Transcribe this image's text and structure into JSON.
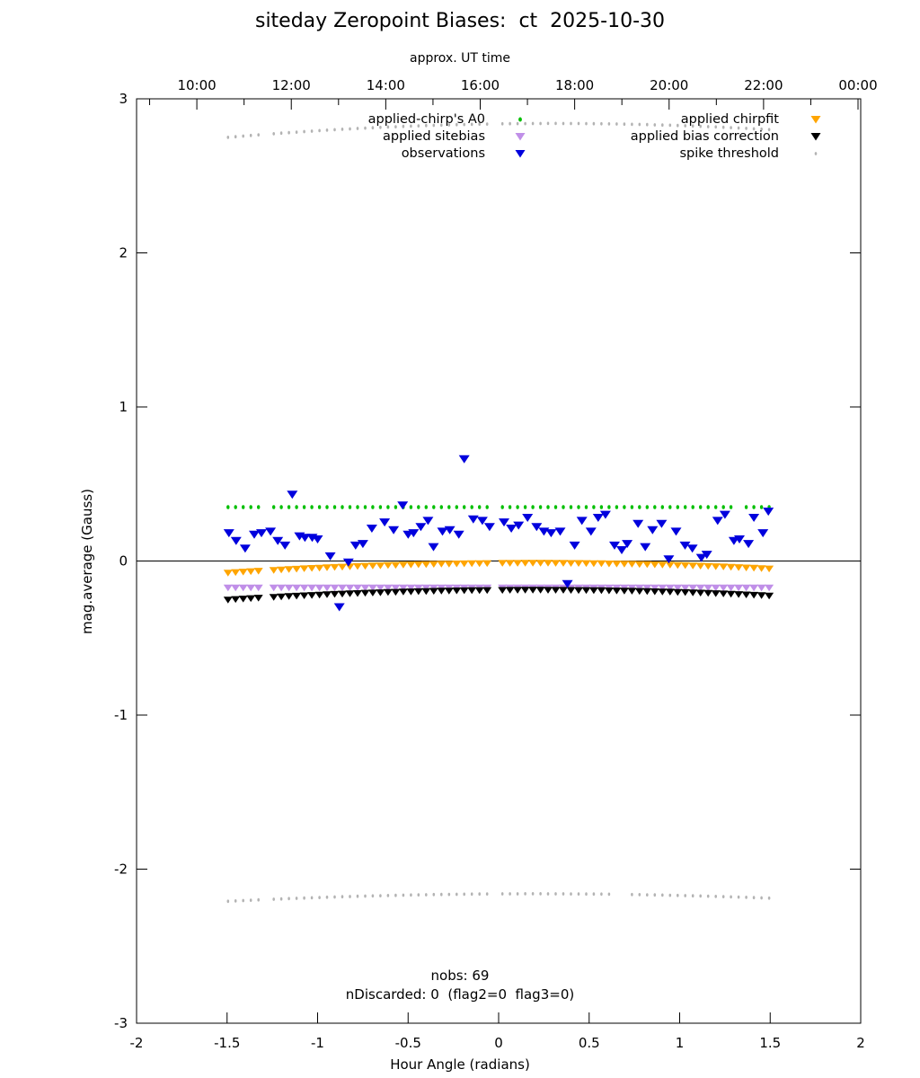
{
  "title": "siteday Zeropoint Biases:  ct  2025-10-30",
  "annotations": {
    "nobs": "nobs: 69",
    "ndiscarded": "nDiscarded: 0  (flag2=0  flag3=0)"
  },
  "chart_data": {
    "type": "scatter",
    "title": "siteday Zeropoint Biases:  ct  2025-10-30",
    "xlabel": "Hour Angle (radians)",
    "ylabel": "mag.average (Gauss)",
    "x2label": "approx. UT time",
    "xlim": [
      -2,
      2
    ],
    "ylim": [
      -3,
      3
    ],
    "grid": false,
    "x_ticks": [
      -2,
      -1.5,
      -1,
      -0.5,
      0,
      0.5,
      1,
      1.5,
      2
    ],
    "x_tick_labels": [
      "-2",
      "-1.5",
      "-1",
      "-0.5",
      "0",
      "0.5",
      "1",
      "1.5",
      "2"
    ],
    "y_ticks": [
      -3,
      -2,
      -1,
      0,
      1,
      2,
      3
    ],
    "y_tick_labels": [
      "-3",
      "-2",
      "-1",
      "0",
      "1",
      "2",
      "3"
    ],
    "x2_axis": {
      "ref_hour": 10,
      "ref_rad": -1.667,
      "rad_per_hour": 0.26087,
      "minor_hours": [
        9,
        10,
        11,
        12,
        13,
        14,
        15,
        16,
        17,
        18,
        19,
        20,
        21,
        22,
        23,
        24
      ],
      "labeled_hours": [
        [
          10,
          "10:00"
        ],
        [
          12,
          "12:00"
        ],
        [
          14,
          "14:00"
        ],
        [
          16,
          "16:00"
        ],
        [
          18,
          "18:00"
        ],
        [
          20,
          "20:00"
        ],
        [
          22,
          "22:00"
        ],
        [
          24,
          "00:00"
        ]
      ]
    },
    "legend_left": [
      {
        "label": "applied-chirp's A0",
        "series": "applied_chirps_A0",
        "marker": "dot",
        "color": "#00bf00"
      },
      {
        "label": "applied sitebias",
        "series": "applied_sitebias",
        "marker": "triangle-down",
        "color": "#c08fe8"
      },
      {
        "label": "observations",
        "series": "observations",
        "marker": "triangle-down",
        "color": "#0000dd"
      }
    ],
    "legend_right": [
      {
        "label": "applied chirpfit",
        "series": "applied_chirpfit",
        "marker": "triangle-down",
        "color": "#ffa500"
      },
      {
        "label": "applied bias correction",
        "series": "applied_bias_correction",
        "marker": "triangle-down",
        "color": "#000000"
      },
      {
        "label": "spike threshold",
        "series": "spike_threshold",
        "marker": "dot",
        "color": "#b3b3b3"
      }
    ],
    "row_sampling": {
      "x_start": -1.495,
      "x_end": 1.511,
      "x_step": 0.0421,
      "gaps_common": [
        [
          -1.305,
          -1.252
        ],
        [
          -0.055,
          0.018
        ]
      ],
      "gaps_green_extra": [
        [
          1.292,
          1.355
        ]
      ],
      "gaps_gray_lower_extra": [
        [
          0.63,
          0.7
        ]
      ]
    },
    "series": {
      "applied_chirps_A0": {
        "kind": "const",
        "value": 0.35,
        "color": "#00bf00",
        "marker": "dot"
      },
      "applied_sitebias": {
        "kind": "const",
        "value": -0.175,
        "color": "#c08fe8",
        "marker": "triangle-down"
      },
      "applied_chirpfit": {
        "kind": "quad",
        "vertex_x": 0.2,
        "vertex_y": -0.015,
        "curv": -0.022,
        "color": "#ffa500",
        "marker": "triangle-down"
      },
      "applied_bias_correction": {
        "kind": "quad",
        "vertex_x": 0.2,
        "vertex_y": -0.19,
        "curv": -0.022,
        "color": "#000000",
        "marker": "triangle-down"
      },
      "spike_threshold_upper": {
        "kind": "quad",
        "vertex_x": 0.3,
        "vertex_y": 2.84,
        "curv": -0.028,
        "color": "#b3b3b3",
        "marker": "dot"
      },
      "spike_threshold_lower": {
        "kind": "quad",
        "vertex_x": 0.2,
        "vertex_y": -2.16,
        "curv": -0.017,
        "color": "#b3b3b3",
        "marker": "dot"
      },
      "observations": {
        "kind": "points",
        "color": "#0000dd",
        "marker": "triangle-down",
        "points": [
          [
            -1.49,
            0.18
          ],
          [
            -1.45,
            0.13
          ],
          [
            -1.4,
            0.08
          ],
          [
            -1.35,
            0.17
          ],
          [
            -1.31,
            0.18
          ],
          [
            -1.26,
            0.19
          ],
          [
            -1.22,
            0.13
          ],
          [
            -1.18,
            0.1
          ],
          [
            -1.14,
            0.43
          ],
          [
            -1.1,
            0.16
          ],
          [
            -1.07,
            0.15
          ],
          [
            -1.03,
            0.15
          ],
          [
            -1.0,
            0.14
          ],
          [
            -0.93,
            0.03
          ],
          [
            -0.88,
            -0.3
          ],
          [
            -0.83,
            -0.01
          ],
          [
            -0.79,
            0.1
          ],
          [
            -0.75,
            0.11
          ],
          [
            -0.7,
            0.21
          ],
          [
            -0.63,
            0.25
          ],
          [
            -0.58,
            0.2
          ],
          [
            -0.53,
            0.36
          ],
          [
            -0.5,
            0.17
          ],
          [
            -0.47,
            0.18
          ],
          [
            -0.43,
            0.22
          ],
          [
            -0.39,
            0.26
          ],
          [
            -0.36,
            0.09
          ],
          [
            -0.31,
            0.19
          ],
          [
            -0.27,
            0.2
          ],
          [
            -0.22,
            0.17
          ],
          [
            -0.19,
            0.66
          ],
          [
            -0.14,
            0.27
          ],
          [
            -0.09,
            0.26
          ],
          [
            -0.05,
            0.22
          ],
          [
            0.03,
            0.25
          ],
          [
            0.07,
            0.21
          ],
          [
            0.11,
            0.23
          ],
          [
            0.16,
            0.28
          ],
          [
            0.21,
            0.22
          ],
          [
            0.25,
            0.19
          ],
          [
            0.29,
            0.18
          ],
          [
            0.34,
            0.19
          ],
          [
            0.38,
            -0.15
          ],
          [
            0.42,
            0.1
          ],
          [
            0.46,
            0.26
          ],
          [
            0.51,
            0.19
          ],
          [
            0.55,
            0.28
          ],
          [
            0.59,
            0.3
          ],
          [
            0.64,
            0.1
          ],
          [
            0.68,
            0.07
          ],
          [
            0.71,
            0.11
          ],
          [
            0.77,
            0.24
          ],
          [
            0.81,
            0.09
          ],
          [
            0.85,
            0.2
          ],
          [
            0.9,
            0.24
          ],
          [
            0.94,
            0.01
          ],
          [
            0.98,
            0.19
          ],
          [
            1.03,
            0.1
          ],
          [
            1.07,
            0.08
          ],
          [
            1.12,
            0.02
          ],
          [
            1.15,
            0.04
          ],
          [
            1.21,
            0.26
          ],
          [
            1.25,
            0.3
          ],
          [
            1.3,
            0.13
          ],
          [
            1.33,
            0.14
          ],
          [
            1.38,
            0.11
          ],
          [
            1.41,
            0.28
          ],
          [
            1.46,
            0.18
          ],
          [
            1.49,
            0.32
          ]
        ]
      }
    }
  }
}
